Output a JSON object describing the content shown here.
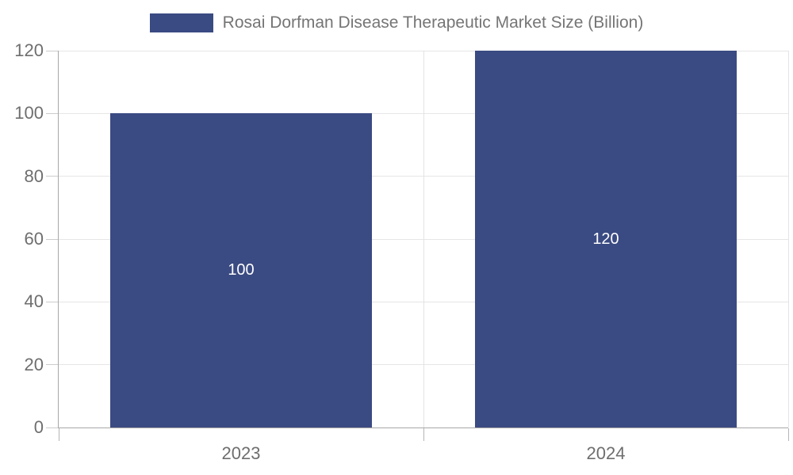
{
  "legend": {
    "label": "Rosai Dorfman Disease Therapeutic Market Size (Billion)"
  },
  "chart_data": {
    "type": "bar",
    "title": "Rosai Dorfman Disease Therapeutic Market Size (Billion)",
    "categories": [
      "2023",
      "2024"
    ],
    "values": [
      100,
      120
    ],
    "xlabel": "",
    "ylabel": "",
    "ylim": [
      0,
      120
    ],
    "yticks": [
      0,
      20,
      40,
      60,
      80,
      100,
      120
    ],
    "grid": true,
    "legend_position": "top",
    "colors": {
      "bar": "#3A4A82",
      "axis": "#a7a7a7",
      "gridline": "#e6e6e6",
      "tick_label": "#6e6e6e",
      "legend_text": "#757575",
      "bar_label": "#ffffff"
    }
  }
}
